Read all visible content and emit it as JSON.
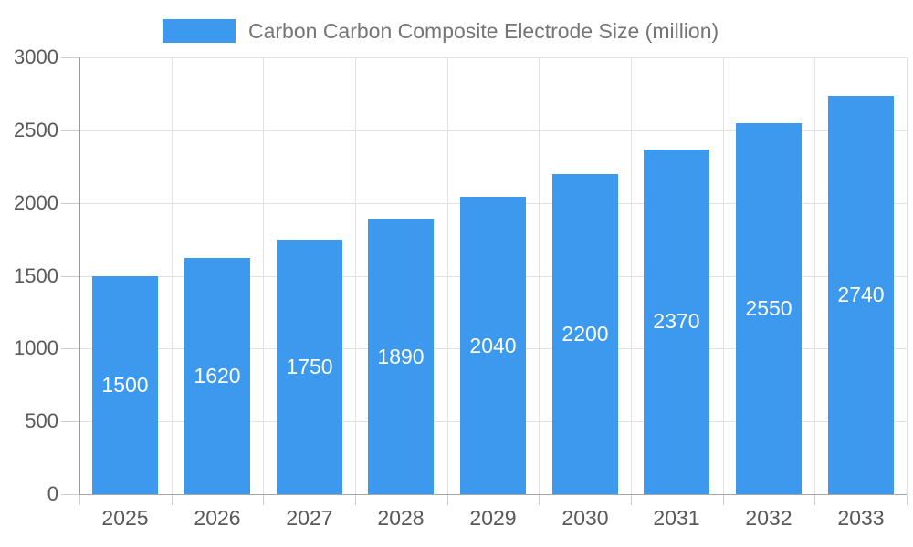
{
  "chart_data": {
    "type": "bar",
    "title": "Carbon Carbon Composite Electrode Size (million)",
    "categories": [
      "2025",
      "2026",
      "2027",
      "2028",
      "2029",
      "2030",
      "2031",
      "2032",
      "2033"
    ],
    "values": [
      1500,
      1620,
      1750,
      1890,
      2040,
      2200,
      2370,
      2550,
      2740
    ],
    "xlabel": "",
    "ylabel": "",
    "ylim": [
      0,
      3000
    ],
    "ytick_step": 500,
    "y_tick_labels": [
      "0",
      "500",
      "1000",
      "1500",
      "2000",
      "2500",
      "3000"
    ],
    "grid": true,
    "legend_position": "top",
    "bar_color": "#3c99ee",
    "value_label_color": "#ffffff",
    "axis_text_color": "#595959",
    "legend_text_color": "#757575",
    "gridline_color": "#e2e2e2"
  }
}
